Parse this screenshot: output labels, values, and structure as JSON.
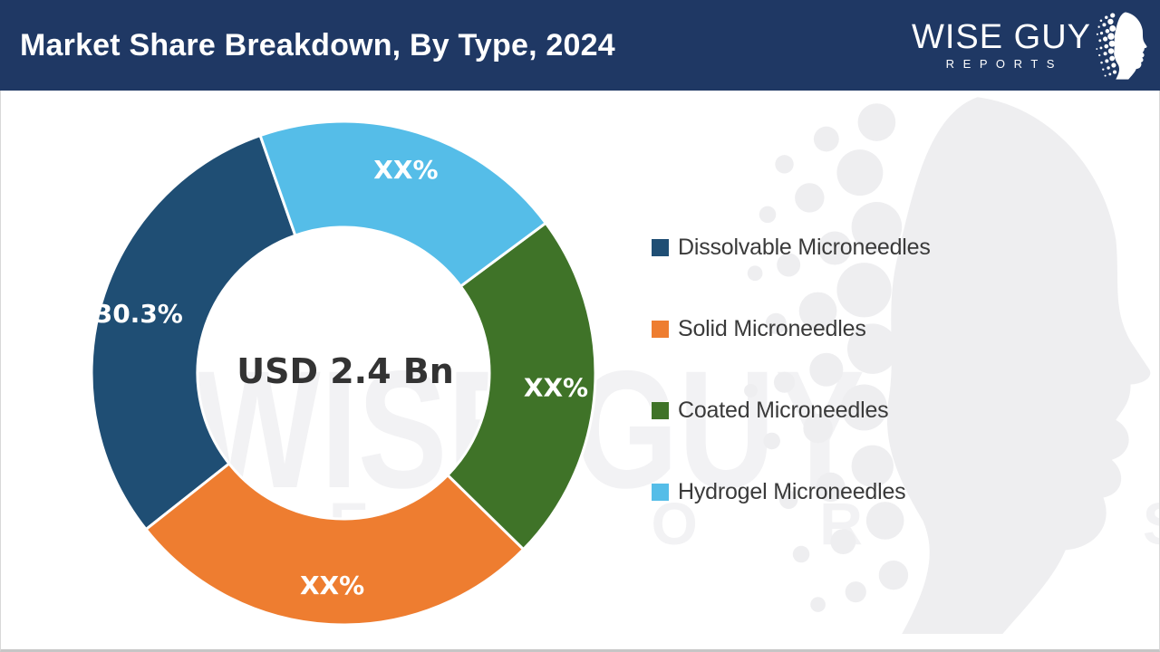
{
  "header": {
    "title": "Market Share Breakdown, By Type, 2024",
    "logo": {
      "line1": "WISE GUY",
      "line2": "R E P O R T S"
    }
  },
  "watermark": {
    "line1": "WISE GUY",
    "line2": "R E P O R T S"
  },
  "chart_data": {
    "type": "pie",
    "subtype": "donut",
    "title": "Market Share Breakdown, By Type, 2024",
    "center_label": "USD 2.4 Bn",
    "legend_position": "right",
    "segments": [
      {
        "label": "Dissolvable Microneedles",
        "value_pct": 30.3,
        "data_label": "30.3%",
        "color": "#1f4e74"
      },
      {
        "label": "Solid Microneedles",
        "value_pct": 27.0,
        "data_label": "XX%",
        "color": "#ee7d30"
      },
      {
        "label": "Coated Microneedles",
        "value_pct": 22.5,
        "data_label": "XX%",
        "color": "#3f7328"
      },
      {
        "label": "Hydrogel Microneedles",
        "value_pct": 20.2,
        "data_label": "XX%",
        "color": "#55bde8"
      }
    ],
    "draw": {
      "start_angle_deg": -19.3,
      "clockwise_order": [
        3,
        2,
        1,
        0
      ],
      "gap_color": "#ffffff"
    },
    "colors": {
      "header_bg": "#1f3864",
      "title_text": "#ffffff",
      "legend_text": "#3a3a3a",
      "center_text": "#333333",
      "watermark": "#f2f2f4"
    }
  }
}
